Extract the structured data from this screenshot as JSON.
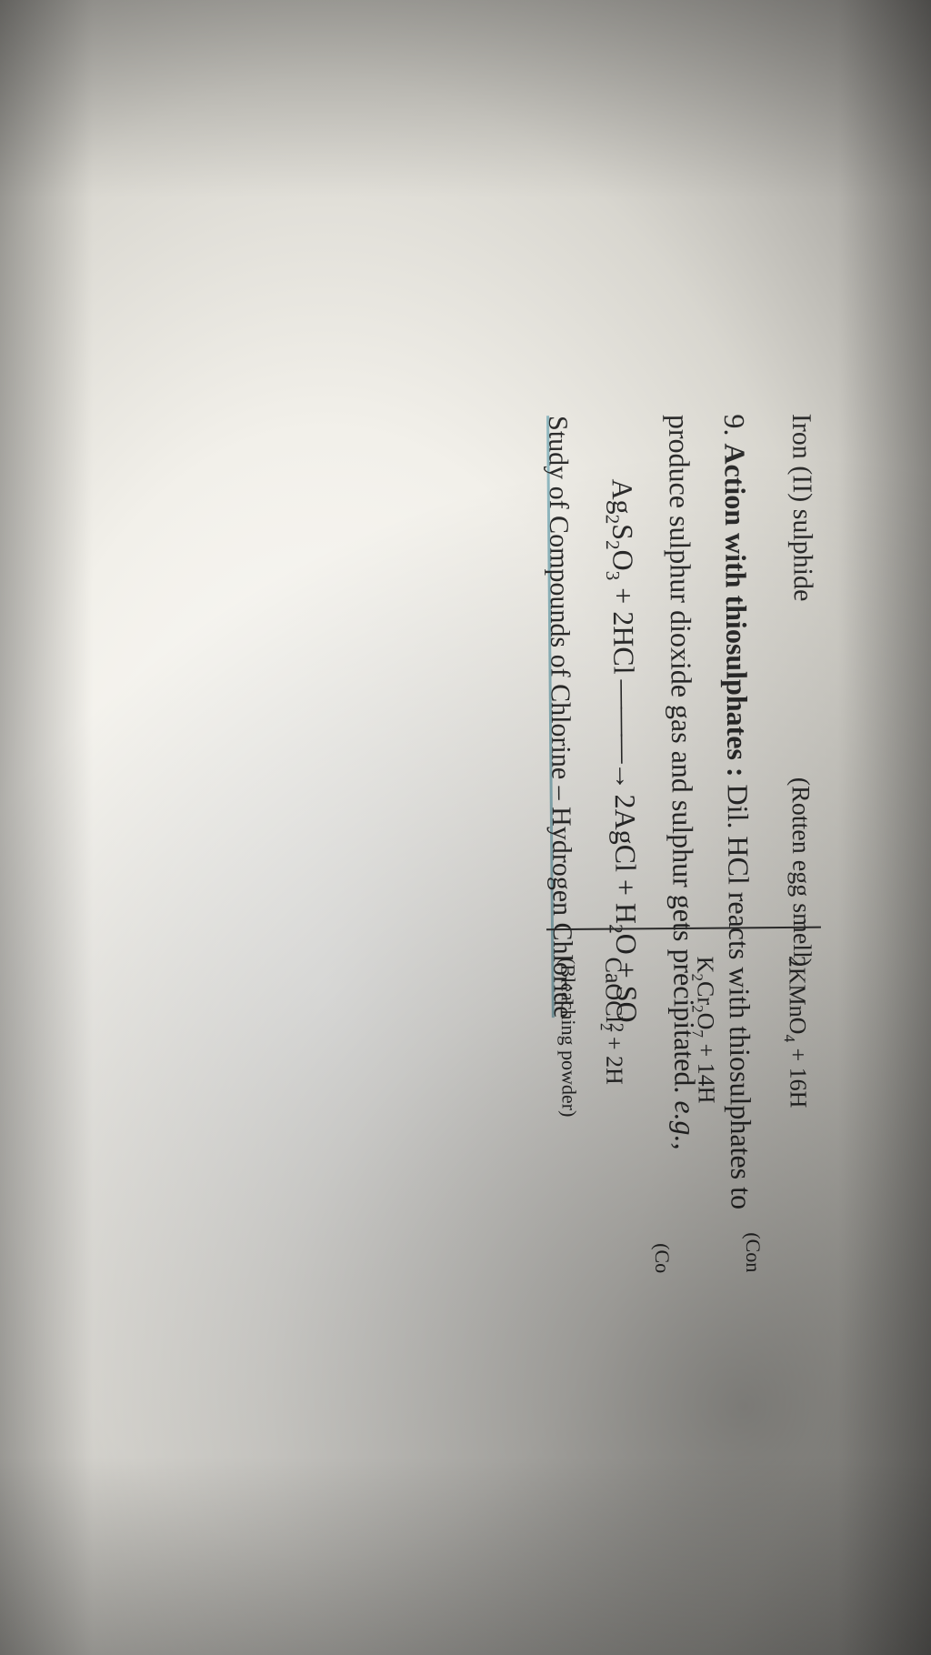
{
  "left": {
    "iron": "Iron (II) sulphide",
    "rotten": "(Rotten egg smell)",
    "item9_lead": "9. ",
    "item9_bold": "Action with thiosulphates : ",
    "item9_rest": "Dil. HCl reacts with thiosulphates to produce sulphur dioxide gas and sulphur gets precipitated. ",
    "item9_eg": "e.g.,",
    "section_a": "Study of Compounds of Chlorine – Hydrogen Chloride"
  },
  "eq": {
    "a": "Ag",
    "b": "S",
    "c": "O",
    "plus": " + ",
    "hcl": "2HCl",
    "arrow": " ———→ ",
    "agcl": "2AgCl",
    "h2o": "H",
    "o": "O",
    "so2": "SO"
  },
  "right": {
    "l1a": "2KMnO",
    "l1b": " + 16H",
    "l1c": "(Con",
    "l2a": "K",
    "l2b": "Cr",
    "l2c": "O",
    "l2d": " + 14H",
    "l2e": "(Co",
    "l3a": "CaOCl",
    "l3b": " + 2H",
    "l4": "(Bleaching powder)"
  }
}
